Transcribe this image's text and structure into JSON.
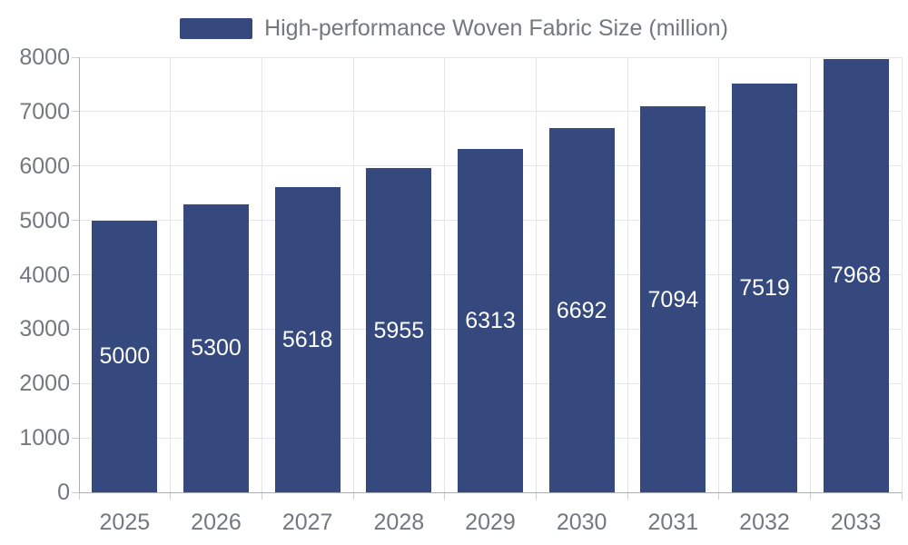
{
  "legend": {
    "label": "High-performance Woven Fabric Size (million)"
  },
  "chart_data": {
    "type": "bar",
    "title": "High-performance Woven Fabric Size (million)",
    "categories": [
      "2025",
      "2026",
      "2027",
      "2028",
      "2029",
      "2030",
      "2031",
      "2032",
      "2033"
    ],
    "values": [
      5000,
      5300,
      5618,
      5955,
      6313,
      6692,
      7094,
      7519,
      7968
    ],
    "xlabel": "",
    "ylabel": "",
    "ylim": [
      0,
      8000
    ],
    "yticks": [
      0,
      1000,
      2000,
      3000,
      4000,
      5000,
      6000,
      7000,
      8000
    ],
    "grid": true,
    "legend_position": "top-center",
    "bar_labels_inside": true,
    "colors": {
      "bar": "#35497E",
      "bar_label_text": "#ffffff",
      "axis_line": "#aaadb3",
      "grid_line": "#e4e6e9",
      "tick_line": "#c9ccd1",
      "axis_text": "#74787e",
      "legend_text": "#74787e",
      "background": "#ffffff"
    }
  }
}
